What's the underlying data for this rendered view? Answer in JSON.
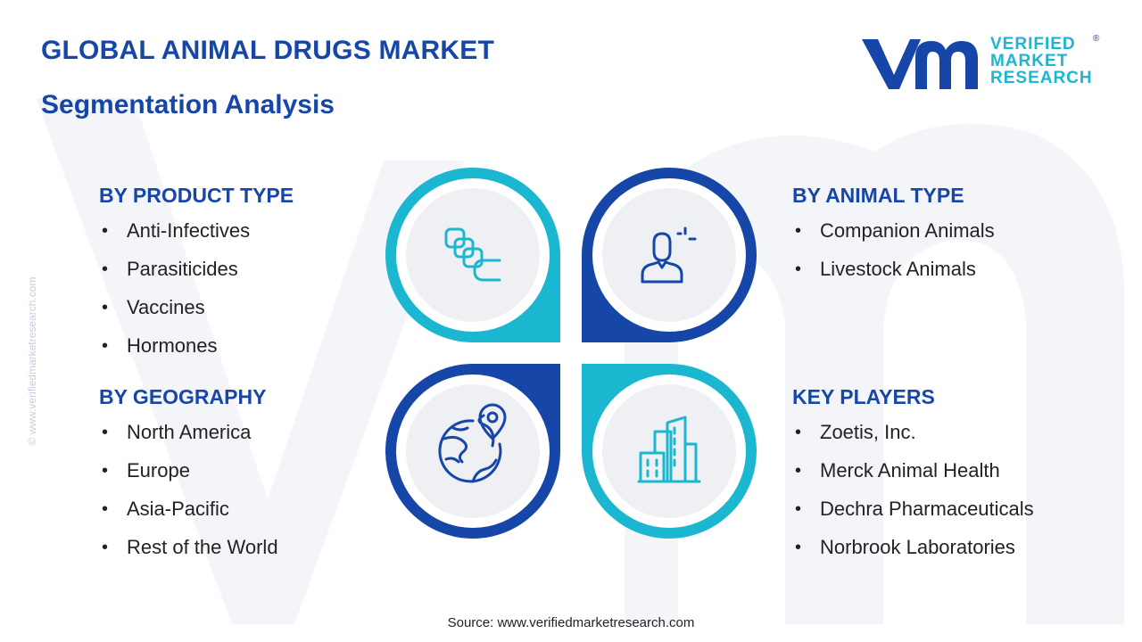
{
  "header": {
    "title": "GLOBAL ANIMAL DRUGS MARKET",
    "subtitle": "Segmentation Analysis"
  },
  "logo": {
    "line1": "VERIFIED",
    "line2": "MARKET",
    "line3": "RESEARCH",
    "registered": "®"
  },
  "side_url": "© www.verifiedmarketresearch.com",
  "sections": {
    "product_type": {
      "heading": "BY PRODUCT TYPE",
      "items": [
        "Anti-Infectives",
        "Parasiticides",
        "Vaccines",
        "Hormones"
      ]
    },
    "geography": {
      "heading": "BY GEOGRAPHY",
      "items": [
        "North America",
        "Europe",
        "Asia-Pacific",
        "Rest of the World"
      ]
    },
    "animal_type": {
      "heading": "BY ANIMAL TYPE",
      "items": [
        "Companion Animals",
        "Livestock Animals"
      ]
    },
    "key_players": {
      "heading": "KEY PLAYERS",
      "items": [
        "Zoetis, Inc.",
        "Merck Animal Health",
        "Dechra Pharmaceuticals",
        "Norbrook Laboratories"
      ]
    }
  },
  "icons": {
    "top_left": "capsules-icon",
    "top_right": "person-icon",
    "bottom_left": "globe-location-icon",
    "bottom_right": "buildings-icon"
  },
  "colors": {
    "dark_blue": "#1646a8",
    "cyan": "#1bb7d0",
    "circle_fill": "#eef0f4"
  },
  "source": "Source: www.verifiedmarketresearch.com"
}
